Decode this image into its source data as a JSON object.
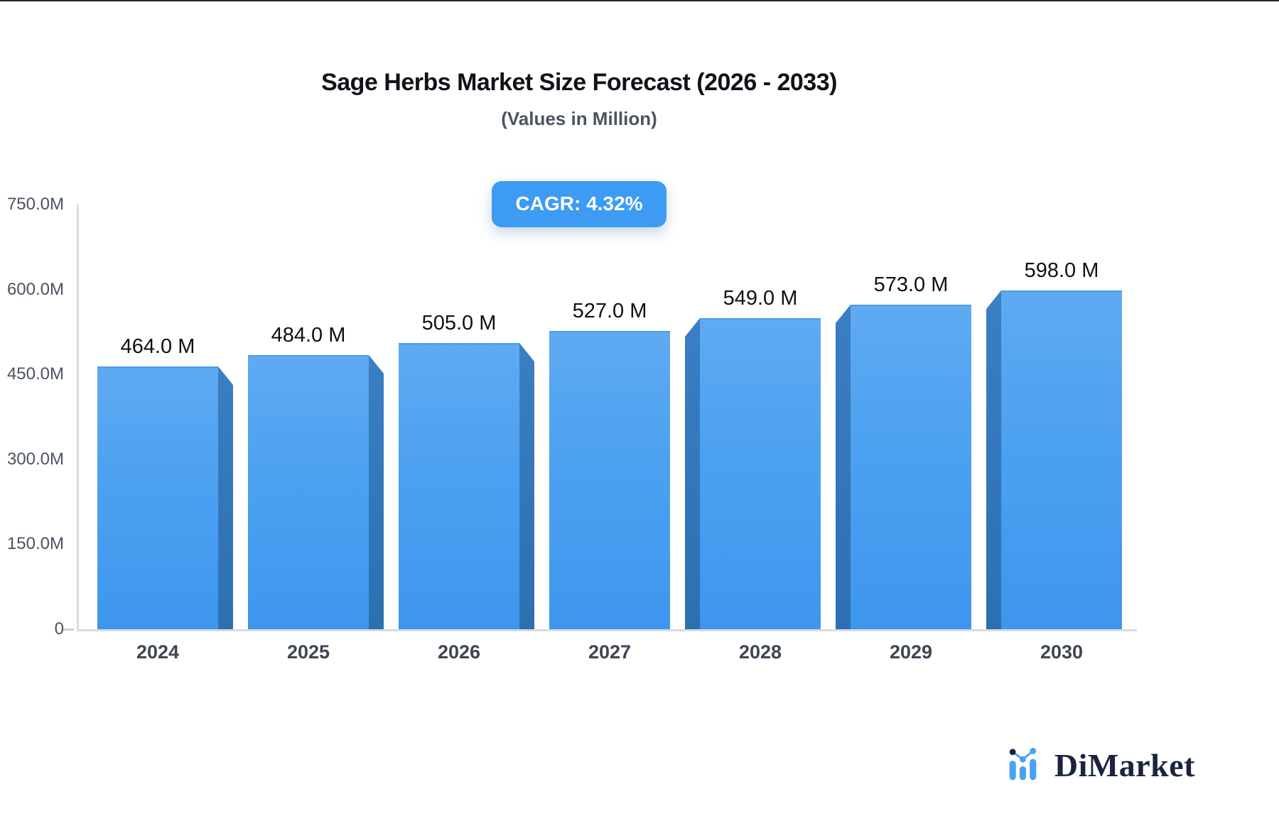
{
  "header": {
    "title": "Sage Herbs Market Size Forecast (2026 - 2033)",
    "subtitle": "(Values in Million)",
    "cagr_badge": "CAGR: 4.32%"
  },
  "chart_data": {
    "type": "bar",
    "title": "Sage Herbs Market Size Forecast (2026 - 2033)",
    "subtitle": "(Values in Million)",
    "annotation": "CAGR: 4.32%",
    "categories": [
      "2024",
      "2025",
      "2026",
      "2027",
      "2028",
      "2029",
      "2030"
    ],
    "values": [
      464,
      484,
      505,
      527,
      549,
      573,
      598
    ],
    "value_labels": [
      "464.0 M",
      "484.0 M",
      "505.0 M",
      "527.0 M",
      "549.0 M",
      "573.0 M",
      "598.0 M"
    ],
    "unit": "Million",
    "xlabel": "",
    "ylabel": "",
    "ylim": [
      0,
      750
    ],
    "yticks": [
      0,
      150,
      300,
      450,
      600,
      750
    ],
    "ytick_labels": [
      "0",
      "150.0M",
      "300.0M",
      "450.0M",
      "600.0M",
      "750.0M"
    ],
    "grid": false,
    "legend": "none",
    "bar_style": "3d-beveled",
    "bar_color": "#3e96ee",
    "bar_side_color": "#2c70b0"
  },
  "footer": {
    "brand": "DiMarket"
  },
  "colors": {
    "badge_bg": "#3d9bf3",
    "axis_line": "#d8dce1",
    "brand_navy": "#1b2342",
    "accent_blue": "#4aa0f4"
  }
}
